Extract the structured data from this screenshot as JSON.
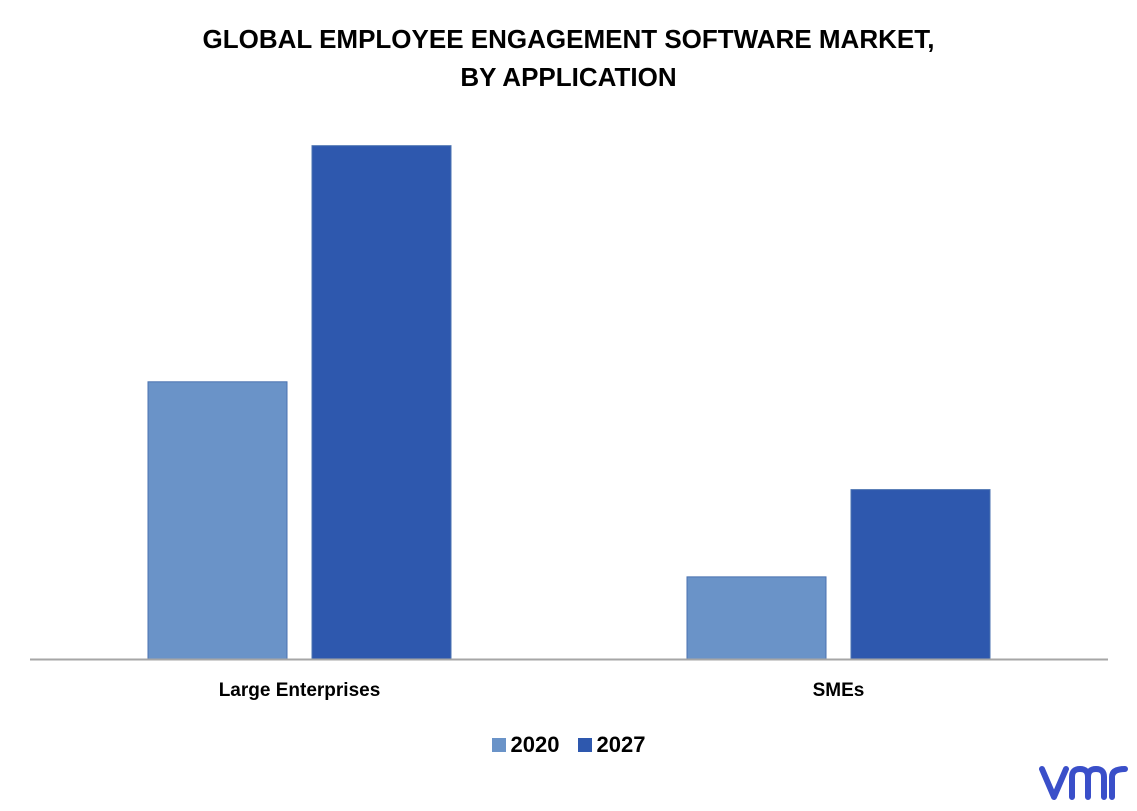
{
  "chart_data": {
    "type": "bar",
    "title_lines": [
      "GLOBAL EMPLOYEE ENGAGEMENT SOFTWARE MARKET,",
      "BY APPLICATION"
    ],
    "categories": [
      "Large Enterprises",
      "SMEs"
    ],
    "series": [
      {
        "name": "2020",
        "values": [
          5.4,
          1.6
        ],
        "color": "#6a93c8"
      },
      {
        "name": "2027",
        "values": [
          10.0,
          3.3
        ],
        "color": "#2e58ae"
      }
    ],
    "ylim": [
      0,
      10.5
    ],
    "xlabel": "",
    "ylabel": "",
    "grid": false,
    "legend_position": "bottom-center"
  },
  "branding": {
    "logo_icon": "vmr-logo-icon",
    "logo_color": "#3a4fc9"
  }
}
